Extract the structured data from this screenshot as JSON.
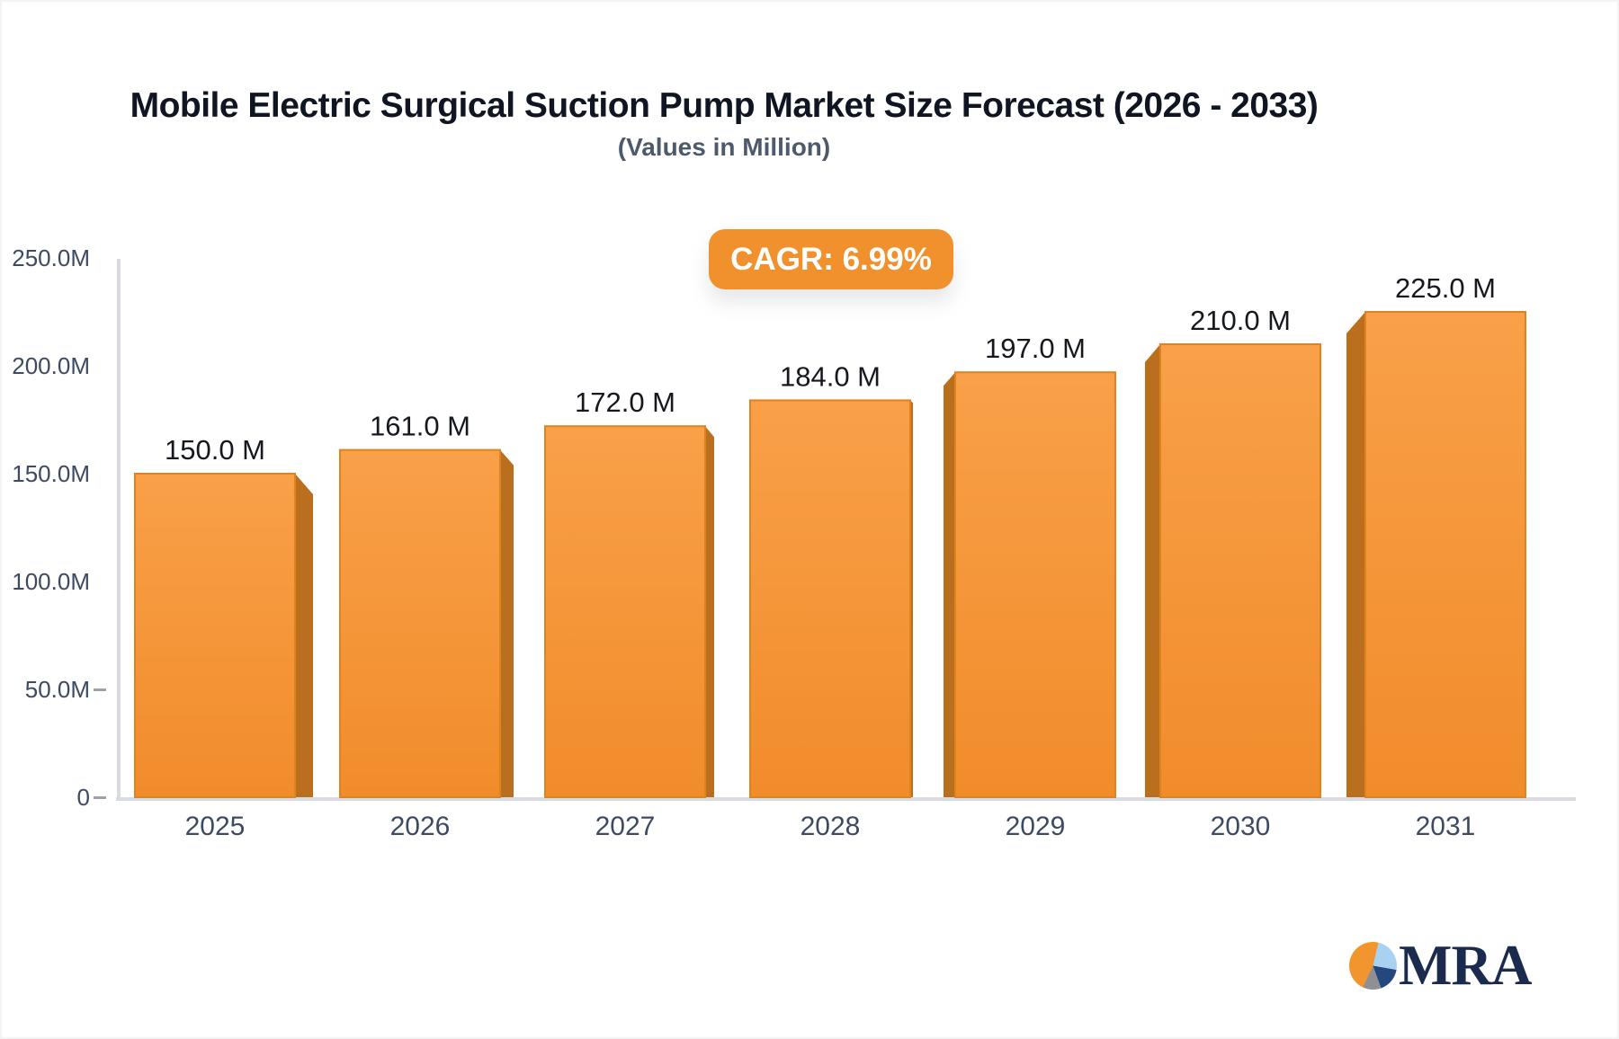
{
  "header": {
    "title": "Mobile Electric Surgical Suction Pump Market Size Forecast (2026 - 2033)",
    "subtitle": "(Values in Million)"
  },
  "badge": {
    "label": "CAGR: 6.99%",
    "bg_color": "#F0912E",
    "text_color": "#FFFFFF"
  },
  "chart_data": {
    "type": "bar",
    "title": "Mobile Electric Surgical Suction Pump Market Size Forecast (2026 - 2033)",
    "subtitle": "(Values in Million)",
    "cagr_pct": 6.99,
    "categories": [
      "2025",
      "2026",
      "2027",
      "2028",
      "2029",
      "2030",
      "2031"
    ],
    "values": [
      150.0,
      161.0,
      172.0,
      184.0,
      197.0,
      210.0,
      225.0
    ],
    "value_labels": [
      "150.0 M",
      "161.0 M",
      "172.0 M",
      "184.0 M",
      "197.0 M",
      "210.0 M",
      "225.0 M"
    ],
    "y_ticks": [
      {
        "value": 250,
        "label": "250.0M"
      },
      {
        "value": 200,
        "label": "200.0M"
      },
      {
        "value": 150,
        "label": "150.0M"
      },
      {
        "value": 100,
        "label": "100.0M"
      },
      {
        "value": 50,
        "label": "50.0M"
      },
      {
        "value": 0,
        "label": "0"
      }
    ],
    "ylim": [
      0,
      250
    ],
    "grid": false,
    "legend": false,
    "bar_face_color_top": "#F9A049",
    "bar_face_color_bottom": "#F18C2B",
    "bar_side_color": "#B96F1E",
    "bar_stroke_color": "#DF831F",
    "axis_color": "#D8DBE1",
    "tick_dash_color": "#9CA3AF",
    "tick_text_color": "#3E4A61",
    "value_text_color": "#15181F"
  },
  "logo": {
    "text": "MRA",
    "text_color": "#1B2B4D",
    "pie_orange": "#F2952F",
    "pie_lightblue": "#A9D2F2",
    "pie_navy": "#24477E",
    "pie_gray": "#8E9094"
  }
}
